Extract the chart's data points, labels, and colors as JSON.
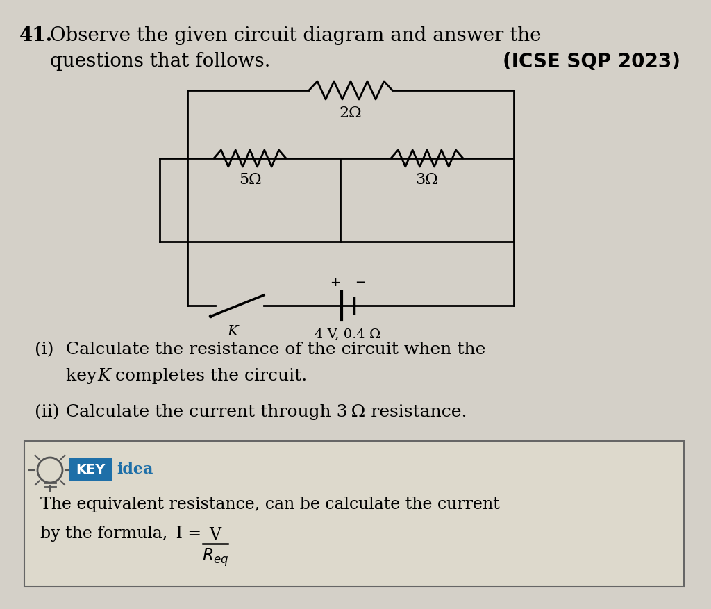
{
  "bg_color": "#c8c8c8",
  "page_color": "#d4d0c8",
  "title_number": "41.",
  "title_line1": "Observe the given circuit diagram and answer the",
  "title_line2": "questions that follows.",
  "title_ref": "(ICSE SQP 2023)",
  "resistor_2ohm": "2Ω",
  "resistor_5ohm": "5Ω",
  "resistor_3ohm": "3Ω",
  "battery_label": "4 V, 0.4 Ω",
  "key_label": "K",
  "q1a": "(i)  Calculate the resistance of the circuit when the",
  "q1b": "      key ",
  "q1b_K": "K",
  "q1c": " completes the circuit.",
  "q2": "(ii) Calculate the current through 3 Ω resistance.",
  "key_idea_badge": "KEY",
  "key_idea_word": "idea",
  "hint1": "The equivalent resistance, can be calculate the current",
  "hint2_prefix": "by the formula,  I = ",
  "frac_num": "V",
  "frac_den": "R",
  "frac_den_sub": "eq",
  "box_edge": "#666666",
  "key_bg": "#1e6fa8",
  "key_fg": "#ffffff",
  "idea_color": "#1e6fa8"
}
